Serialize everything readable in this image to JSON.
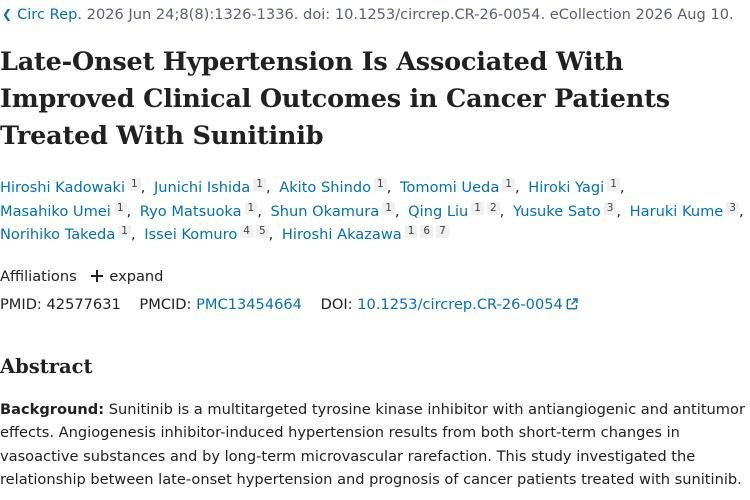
{
  "citation": {
    "journal": "Circ Rep.",
    "details": "2026 Jun 24;8(8):1326-1336. doi: 10.1253/circrep.CR-26-0054. eCollection 2026 Aug 10."
  },
  "title": {
    "line1": "Late-Onset Hypertension Is Associated With",
    "line2": "Improved Clinical Outcomes in Cancer Patients",
    "line3": "Treated With Sunitinib"
  },
  "authors": [
    {
      "name": "Hiroshi Kadowaki",
      "affs": [
        "1"
      ]
    },
    {
      "name": "Junichi Ishida",
      "affs": [
        "1"
      ]
    },
    {
      "name": "Akito Shindo",
      "affs": [
        "1"
      ]
    },
    {
      "name": "Tomomi Ueda",
      "affs": [
        "1"
      ]
    },
    {
      "name": "Hiroki Yagi",
      "affs": [
        "1"
      ]
    },
    {
      "name": "Masahiko Umei",
      "affs": [
        "1"
      ]
    },
    {
      "name": "Ryo Matsuoka",
      "affs": [
        "1"
      ]
    },
    {
      "name": "Shun Okamura",
      "affs": [
        "1"
      ]
    },
    {
      "name": "Qing Liu",
      "affs": [
        "1",
        "2"
      ]
    },
    {
      "name": "Yusuke Sato",
      "affs": [
        "3"
      ]
    },
    {
      "name": "Haruki Kume",
      "affs": [
        "3"
      ]
    },
    {
      "name": "Norihiko Takeda",
      "affs": [
        "1"
      ]
    },
    {
      "name": "Issei Komuro",
      "affs": [
        "4",
        "5"
      ]
    },
    {
      "name": "Hiroshi Akazawa",
      "affs": [
        "1",
        "6",
        "7"
      ]
    }
  ],
  "affiliations": {
    "label": "Affiliations",
    "expand_label": "expand"
  },
  "identifiers": {
    "pmid_label": "PMID:",
    "pmid": "42577631",
    "pmcid_label": "PMCID:",
    "pmcid": "PMC13454664",
    "doi_label": "DOI:",
    "doi": "10.1253/circrep.CR-26-0054"
  },
  "abstract": {
    "heading": "Abstract",
    "background_label": "Background:",
    "lines": [
      " Sunitinib is a multitargeted tyrosine kinase inhibitor with antiangiogenic and antitumor",
      "effects. Angiogenesis inhibitor-induced hypertension results from both short-term changes in",
      "vasoactive substances and by long-term microvascular rarefaction. This study investigated the",
      "relationship between late-onset hypertension and prognosis of cancer patients treated with sunitinib."
    ]
  },
  "colors": {
    "link": "#0071bc",
    "text": "#212121",
    "muted": "#5b616b"
  }
}
